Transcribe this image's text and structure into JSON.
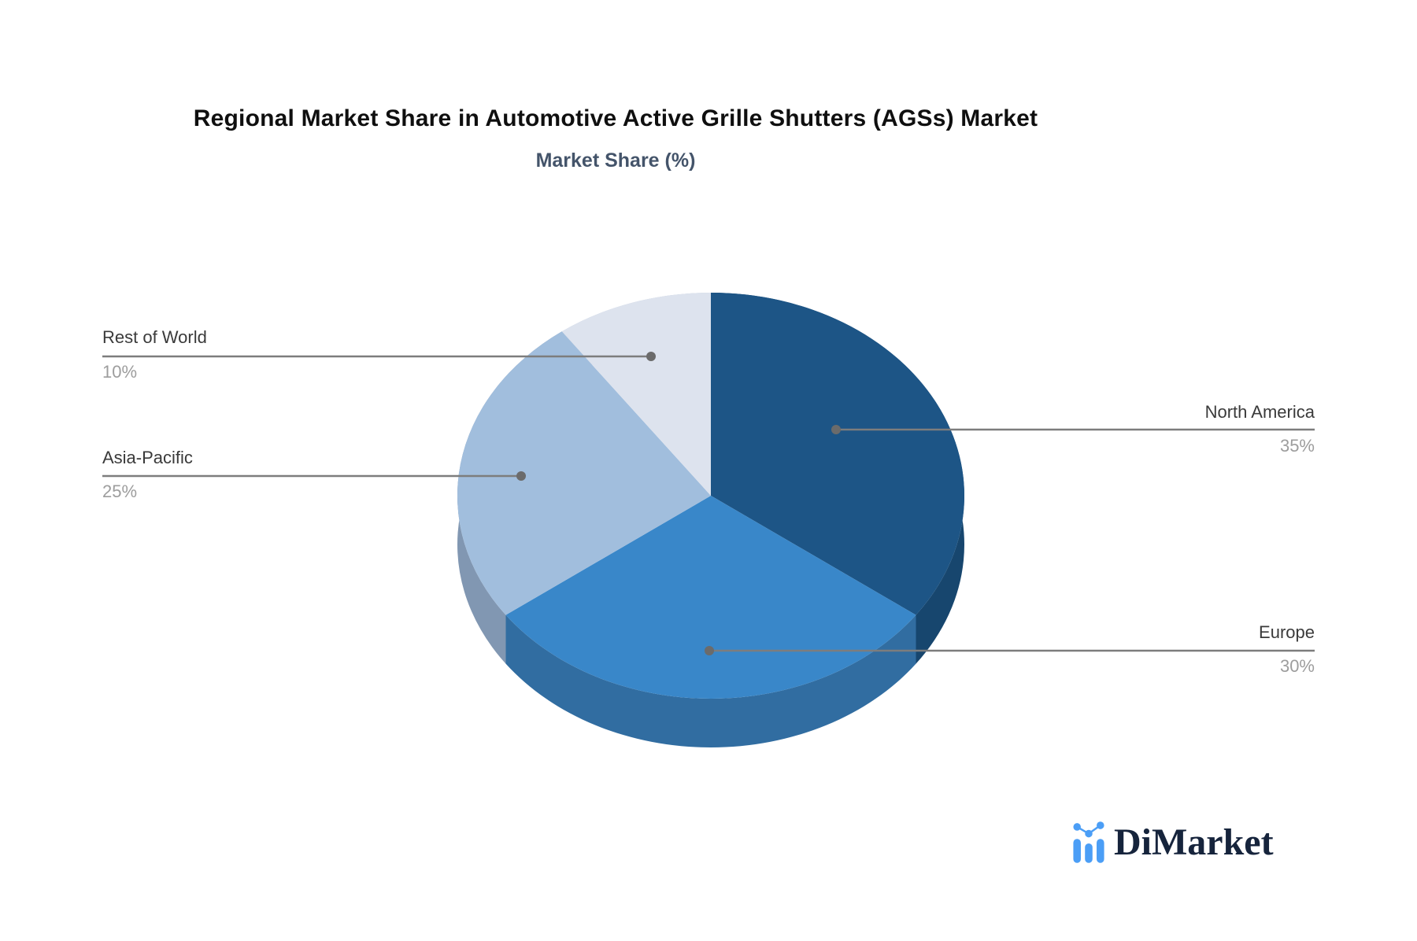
{
  "title": "Regional Market Share in Automotive Active Grille Shutters (AGSs) Market",
  "subtitle": "Market Share (%)",
  "brand": {
    "name": "DiMarket"
  },
  "chart_data": {
    "type": "pie",
    "title": "Regional Market Share in Automotive Active Grille Shutters (AGSs) Market",
    "subtitle": "Market Share (%)",
    "unit": "%",
    "start_angle_deg": -90,
    "direction": "clockwise",
    "style": "3d-depth",
    "legend_position": "callout-labels",
    "slices": [
      {
        "label": "North America",
        "value": 35,
        "display": "35%",
        "color": "#1d5586",
        "side_color": "#17466e",
        "callout_side": "right"
      },
      {
        "label": "Europe",
        "value": 30,
        "display": "30%",
        "color": "#3987c9",
        "side_color": "#316da1",
        "callout_side": "right"
      },
      {
        "label": "Asia-Pacific",
        "value": 25,
        "display": "25%",
        "color": "#a1bedd",
        "side_color": "#8197b2",
        "callout_side": "left"
      },
      {
        "label": "Rest of World",
        "value": 10,
        "display": "10%",
        "color": "#dde3ee",
        "side_color": "#b8c4d6",
        "callout_side": "left"
      }
    ],
    "colors": {
      "leader_line": "#7d7d7d",
      "leader_dot": "#6b6b6b",
      "label_text": "#3a3a3a",
      "value_text": "#9d9d9d",
      "title_text": "#0f0f0f",
      "subtitle_text": "#44546a",
      "logo_icon": "#4b9ef6",
      "logo_text": "#16243c"
    }
  }
}
